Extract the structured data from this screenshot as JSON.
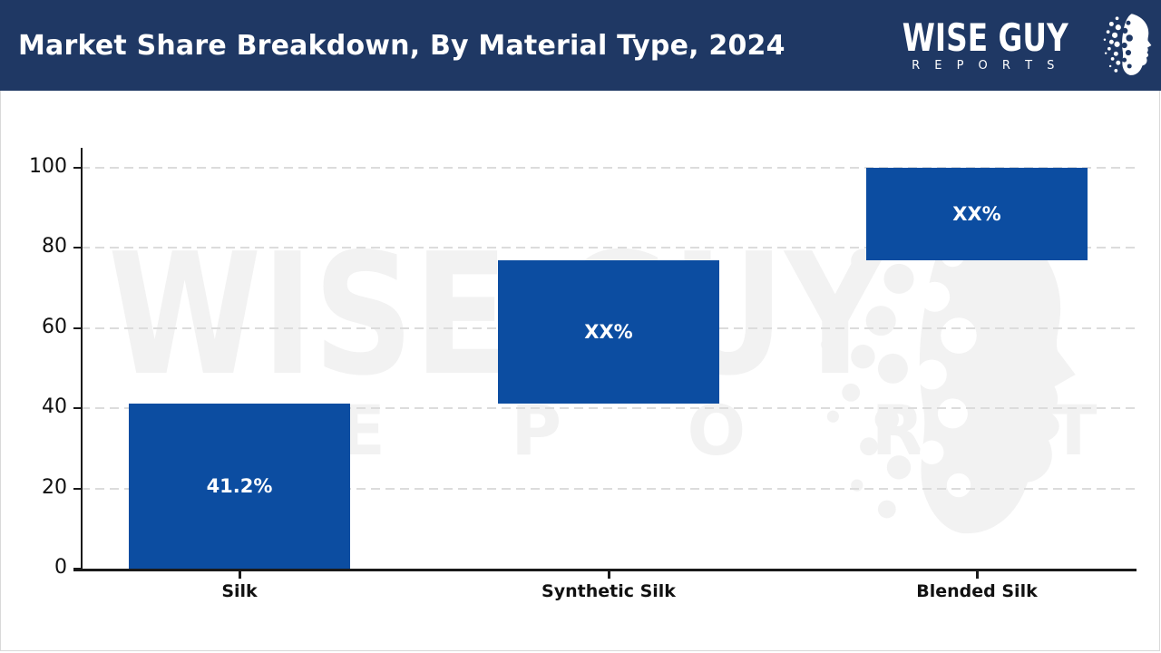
{
  "header": {
    "title": "Market Share Breakdown, By Material Type, 2024",
    "logo": {
      "wordmark": "WISE GUY",
      "subtext": "R E P O R T S"
    }
  },
  "watermark": {
    "wordmark": "WISE GUY",
    "subtext": "R E P O R T S"
  },
  "colors": {
    "header_bg": "#1f3864",
    "bar": "#0c4da1",
    "bar_label": "#ffffff",
    "axis": "#1a1a1a",
    "grid": "#dcdcdc",
    "tick_text": "#111111",
    "watermark": "#f2f2f2",
    "border": "#d9d9d9"
  },
  "chart_data": {
    "type": "bar",
    "subtype": "floating-segment-waterfall",
    "title": "Market Share Breakdown, By Material Type, 2024",
    "categories": [
      "Silk",
      "Synthetic Silk",
      "Blended Silk"
    ],
    "segments": [
      {
        "category": "Silk",
        "start": 0,
        "end": 41.2,
        "label": "41.2%"
      },
      {
        "category": "Synthetic Silk",
        "start": 41.2,
        "end": 77,
        "label": "XX%"
      },
      {
        "category": "Blended Silk",
        "start": 77,
        "end": 100,
        "label": "XX%"
      }
    ],
    "unit": "%",
    "yticks": [
      0,
      20,
      40,
      60,
      80,
      100
    ],
    "ylim": [
      0,
      105
    ],
    "xlabel": "",
    "ylabel": "",
    "grid": "horizontal-dashed",
    "legend": "none"
  }
}
